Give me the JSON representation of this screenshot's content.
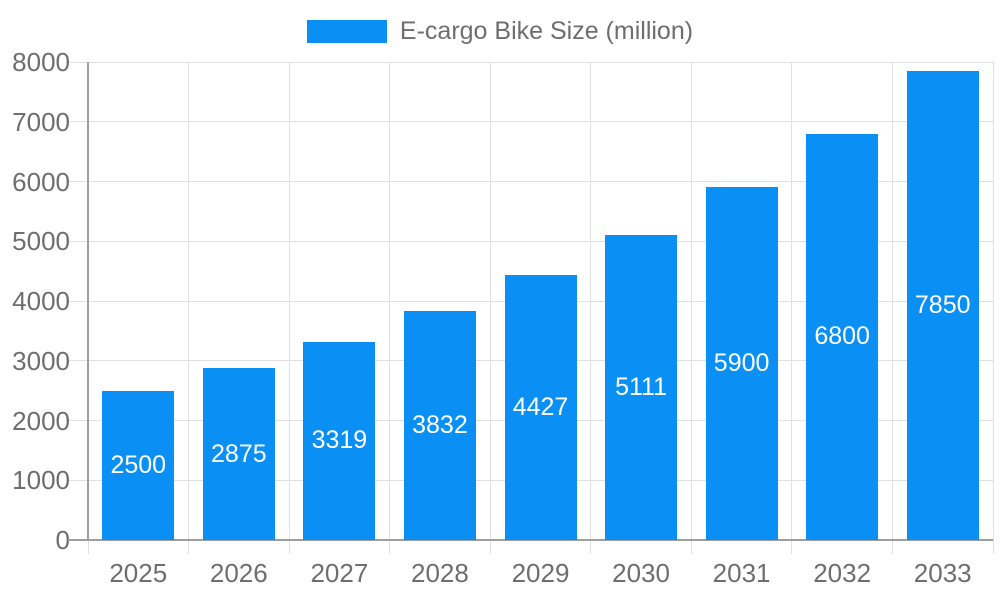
{
  "chart_data": {
    "type": "bar",
    "title": "",
    "legend_label": "E-cargo Bike Size (million)",
    "legend_position": "top-center",
    "categories": [
      "2025",
      "2026",
      "2027",
      "2028",
      "2029",
      "2030",
      "2031",
      "2032",
      "2033"
    ],
    "series": [
      {
        "name": "E-cargo Bike Size (million)",
        "values": [
          2500,
          2875,
          3319,
          3832,
          4427,
          5111,
          5900,
          6800,
          7850
        ]
      }
    ],
    "xlabel": "",
    "ylabel": "",
    "ylim": [
      0,
      8000
    ],
    "yticks": [
      0,
      1000,
      2000,
      3000,
      4000,
      5000,
      6000,
      7000,
      8000
    ],
    "grid": true,
    "bar_value_labels": true
  },
  "colors": {
    "bar": "#0a90f5",
    "grid": "#e0e0e0",
    "axis": "#9e9e9e",
    "axis_text": "#6e6e6e",
    "legend_text": "#6e6e6e",
    "value_label_text": "#ffffff",
    "background": "#ffffff"
  }
}
